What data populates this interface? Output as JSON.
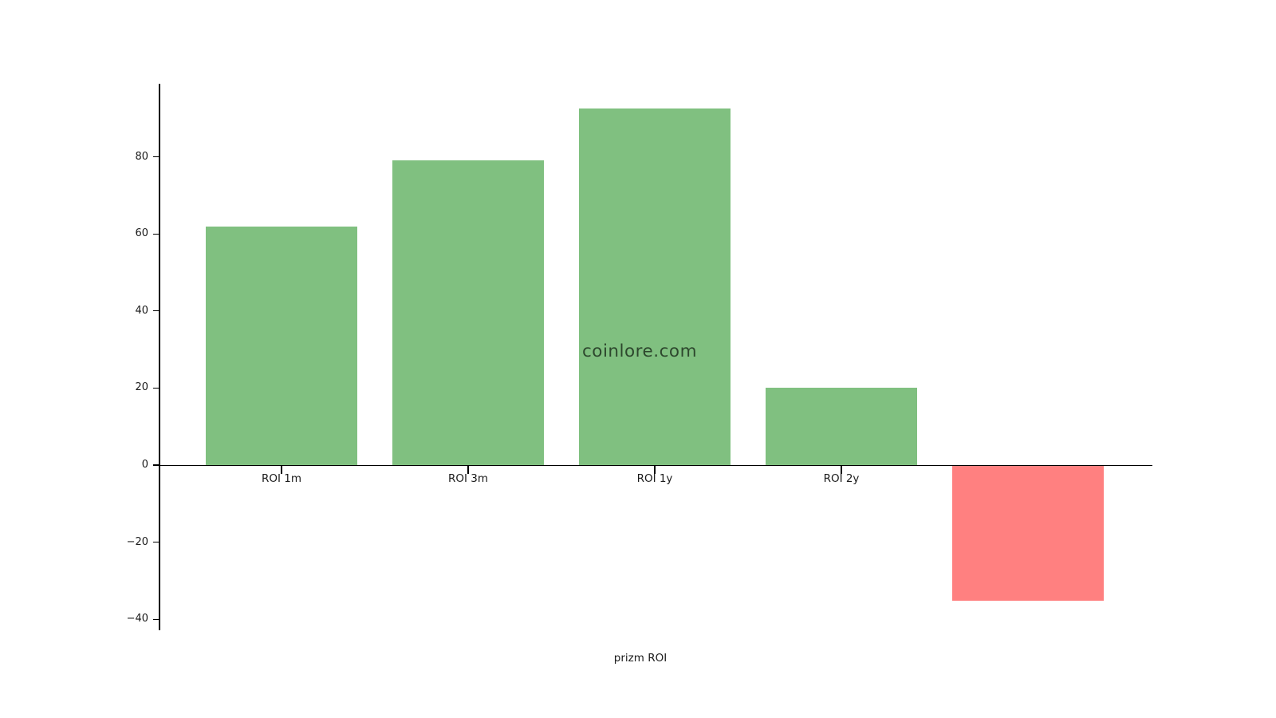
{
  "chart_data": {
    "type": "bar",
    "title": "",
    "categories": [
      "ROI 1m",
      "ROI 3m",
      "ROI 1y",
      "ROI 2y",
      ""
    ],
    "values": [
      62,
      79,
      92.5,
      20,
      -35
    ],
    "bar_colors": [
      "#80c080",
      "#80c080",
      "#80c080",
      "#80c080",
      "#ff8080"
    ],
    "positive_color": "#80c080",
    "negative_color": "#ff8080",
    "xlabel": "prizm ROI",
    "ylabel": "",
    "yticks": [
      80,
      60,
      40,
      20,
      0,
      -20,
      -40
    ],
    "ylim": [
      -43,
      99
    ],
    "grid": false,
    "legend": "none",
    "axis_color": "#000000"
  },
  "watermark": {
    "text": "coinlore.com"
  }
}
